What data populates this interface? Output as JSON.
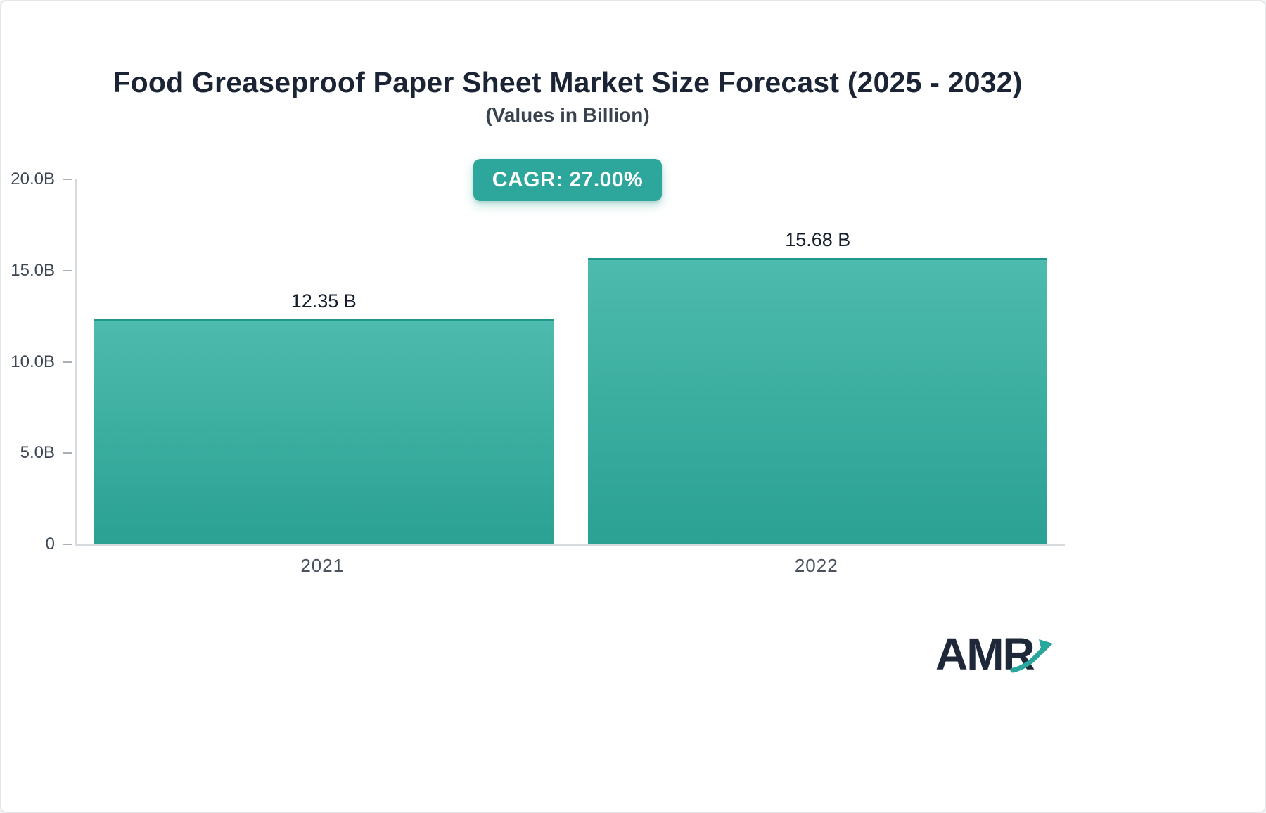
{
  "page": {
    "background": "#ffffff"
  },
  "chart_data": {
    "type": "bar",
    "title": "Food Greaseproof Paper Sheet Market Size Forecast (2025 - 2032)",
    "subtitle": "(Values in Billion)",
    "cagr_badge": "CAGR: 27.00%",
    "categories": [
      "2021",
      "2022"
    ],
    "values": [
      12.35,
      15.68
    ],
    "value_labels": [
      "12.35 B",
      "15.68 B"
    ],
    "ylim": [
      0,
      20
    ],
    "yticks": [
      20,
      15,
      10,
      5,
      0
    ],
    "ytick_labels": [
      "20.0B",
      "15.0B",
      "10.0B",
      "5.0B",
      "0"
    ],
    "grid": false,
    "legend": "none",
    "bar_gradient": [
      "#4dbbad",
      "#2aa193"
    ],
    "accent_color": "#2da79c",
    "axis_color": "#d8dbde"
  },
  "logo": {
    "text": "AMR",
    "arrow_color": "#2aa79d"
  }
}
